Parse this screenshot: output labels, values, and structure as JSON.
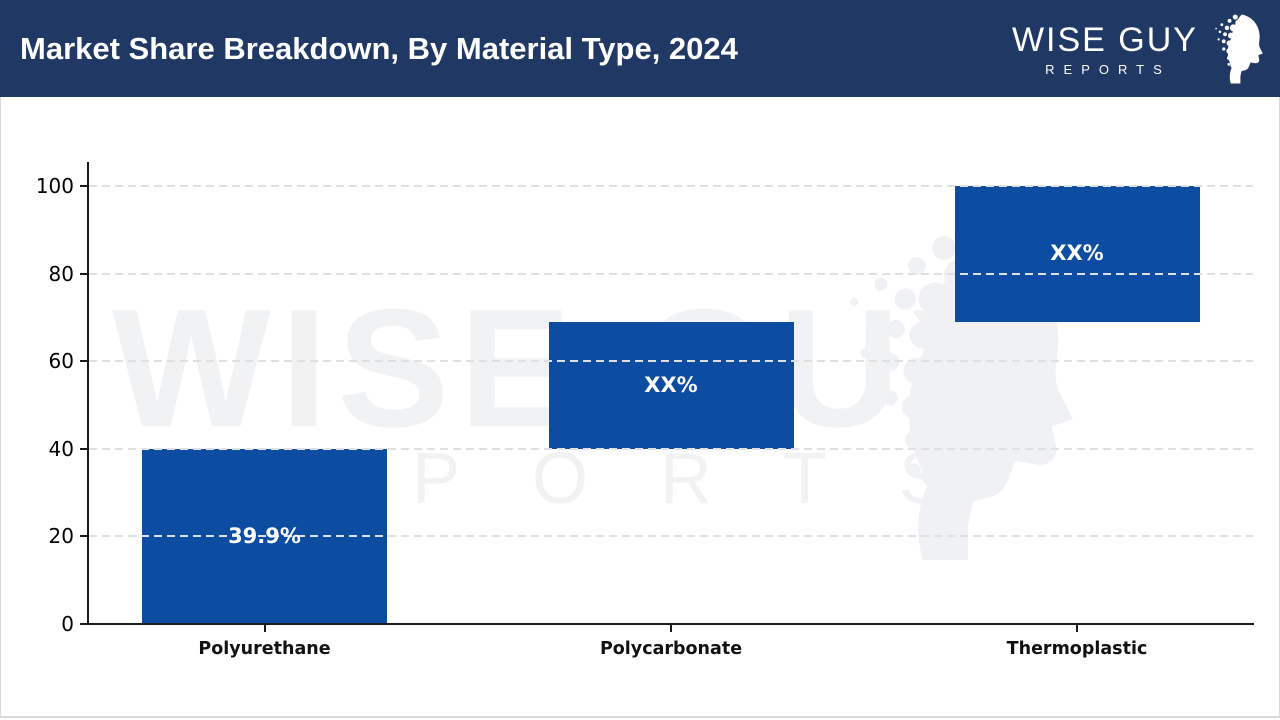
{
  "header": {
    "title": "Market Share Breakdown, By Material Type, 2024",
    "brand": {
      "name": "WISE GUY",
      "sub": "REPORTS"
    }
  },
  "watermark": {
    "line1": "WISE GUY",
    "line2": "REPORTS"
  },
  "chart_data": {
    "type": "bar",
    "subtype": "floating-waterfall",
    "title": "Market Share Breakdown, By Material Type, 2024",
    "categories": [
      "Polyurethane",
      "Polycarbonate",
      "Thermoplastic"
    ],
    "segments": [
      {
        "category": "Polyurethane",
        "start": 0,
        "end": 39.9,
        "label": "39.9%"
      },
      {
        "category": "Polycarbonate",
        "start": 39.9,
        "end": 69.0,
        "label": "XX%"
      },
      {
        "category": "Thermoplastic",
        "start": 69.0,
        "end": 100,
        "label": "XX%"
      }
    ],
    "yticks": [
      0,
      20,
      40,
      60,
      80,
      100
    ],
    "ytick_labels": [
      "0",
      "20",
      "40",
      "60",
      "80",
      "100"
    ],
    "ylim": [
      0,
      105
    ],
    "xlabel": "",
    "ylabel": "",
    "grid": "dashed-horizontal",
    "legend": "none",
    "bar_color": "#0c4da2",
    "bar_label_color": "#ffffff",
    "header_color": "#1f3864",
    "gridline_color": "#e0e0e0",
    "axis_color": "#1a1a1a"
  }
}
